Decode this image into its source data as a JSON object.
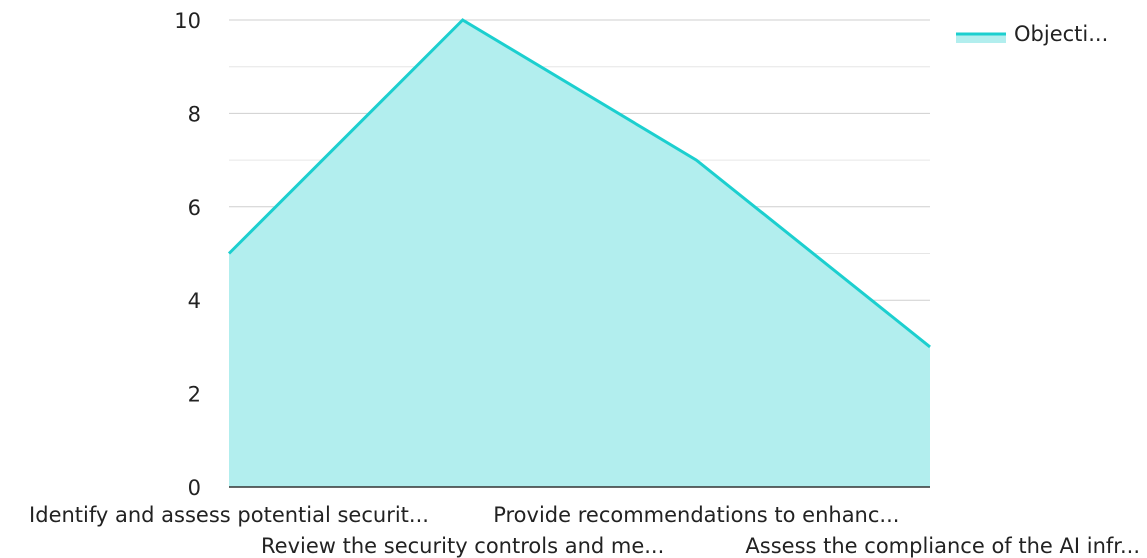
{
  "chart_data": {
    "type": "area",
    "title": "",
    "xlabel": "",
    "ylabel": "",
    "categories": [
      "Identify and assess potential securit...",
      "Review the security controls and me...",
      "Provide recommendations to enhanc...",
      "Assess the compliance of the AI infr..."
    ],
    "series": [
      {
        "name": "Objecti...",
        "values": [
          5,
          10,
          7,
          3
        ],
        "line_color": "#1ccfcf",
        "fill_color": "#b2eeee"
      }
    ],
    "ylim": [
      0,
      10
    ],
    "y_ticks": [
      "0",
      "2",
      "4",
      "6",
      "8",
      "10"
    ],
    "grid": true,
    "legend": "top-right"
  }
}
